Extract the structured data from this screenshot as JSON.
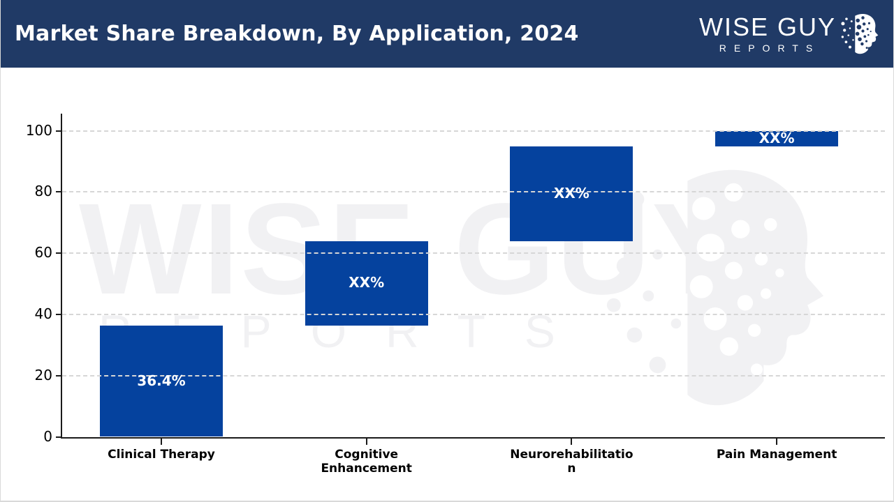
{
  "header": {
    "title": "Market Share Breakdown, By Application, 2024",
    "brand": {
      "name": "WISE GUY",
      "sub": "REPORTS"
    }
  },
  "watermark": {
    "line1": "WISE GUY",
    "line2": "REPORTS"
  },
  "colors": {
    "header_bg": "#203a66",
    "bar": "#05429e",
    "axis": "#1a1a1a",
    "gridline": "#d6d6d6",
    "watermark": "#f1f1f3"
  },
  "chart_data": {
    "type": "bar",
    "subtype": "waterfall",
    "title": "Market Share Breakdown, By Application, 2024",
    "categories": [
      "Clinical Therapy",
      "Cognitive Enhancement",
      "Neurorehabilitation",
      "Pain Management"
    ],
    "tick_label_lines": [
      [
        "Clinical Therapy"
      ],
      [
        "Cognitive",
        "Enhancement"
      ],
      [
        "Neurorehabilitatio",
        "n"
      ],
      [
        "Pain Management"
      ]
    ],
    "series": [
      {
        "name": "Market Share",
        "segments": [
          {
            "category": "Clinical Therapy",
            "start": 0,
            "end": 36.4,
            "label": "36.4%"
          },
          {
            "category": "Cognitive Enhancement",
            "start": 36.4,
            "end": 64,
            "label": "XX%"
          },
          {
            "category": "Neurorehabilitation",
            "start": 64,
            "end": 94.8,
            "label": "XX%"
          },
          {
            "category": "Pain Management",
            "start": 94.8,
            "end": 100,
            "label": "XX%"
          }
        ]
      }
    ],
    "ylim": [
      0,
      100
    ],
    "yticks": [
      0,
      20,
      40,
      60,
      80,
      100
    ],
    "xlabel": "",
    "ylabel": "",
    "grid": "horizontal-dashed-over-bars",
    "legend": "none"
  }
}
